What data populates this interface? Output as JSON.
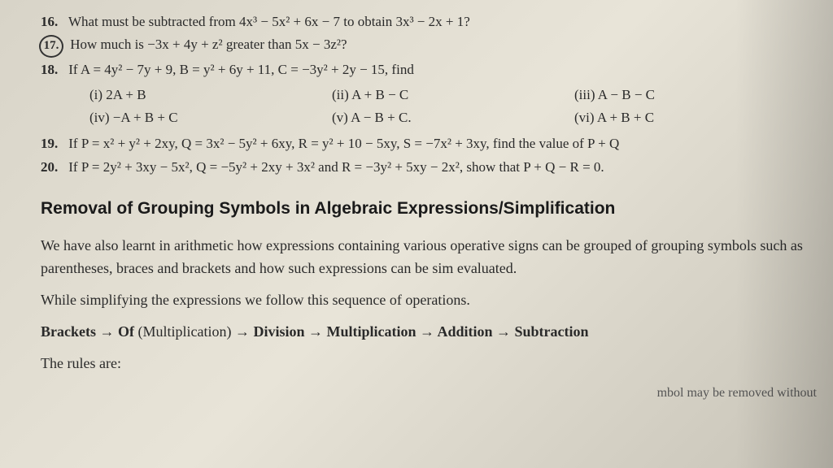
{
  "q16": {
    "num": "16.",
    "text": "What must be subtracted from 4x³ − 5x² + 6x − 7 to obtain 3x³ − 2x + 1?"
  },
  "q17": {
    "num": "17.",
    "text": "How much is −3x + 4y + z² greater than 5x − 3z²?"
  },
  "q18": {
    "num": "18.",
    "text": "If A = 4y² − 7y + 9,  B = y² + 6y + 11, C = −3y² + 2y − 15, find",
    "parts": {
      "i": "(i) 2A + B",
      "ii": "(ii) A + B − C",
      "iii": "(iii) A − B − C",
      "iv": "(iv) −A + B + C",
      "v": "(v) A − B + C.",
      "vi": "(vi) A + B + C"
    }
  },
  "q19": {
    "num": "19.",
    "text": "If P = x² + y² + 2xy, Q = 3x² − 5y² + 6xy, R = y² + 10 − 5xy, S = −7x² + 3xy, find the value of P + Q"
  },
  "q20": {
    "num": "20.",
    "text": "If P = 2y² + 3xy − 5x², Q = −5y² + 2xy + 3x² and R = −3y² + 5xy − 2x², show that P + Q − R = 0."
  },
  "heading": "Removal of Grouping Symbols in Algebraic Expressions/Simplification",
  "para1": "We have also learnt in arithmetic how expressions containing various operative signs can be grouped of grouping symbols such as parentheses, braces and brackets and how such expressions can be sim evaluated.",
  "para2": "While simplifying the expressions we follow this sequence of operations.",
  "order": {
    "b": "Brackets → Of ",
    "of": "(Multiplication) → ",
    "d": "Division → Multiplication → Addition → Subtraction"
  },
  "rules": "The rules are:",
  "tail": "mbol may be removed without"
}
